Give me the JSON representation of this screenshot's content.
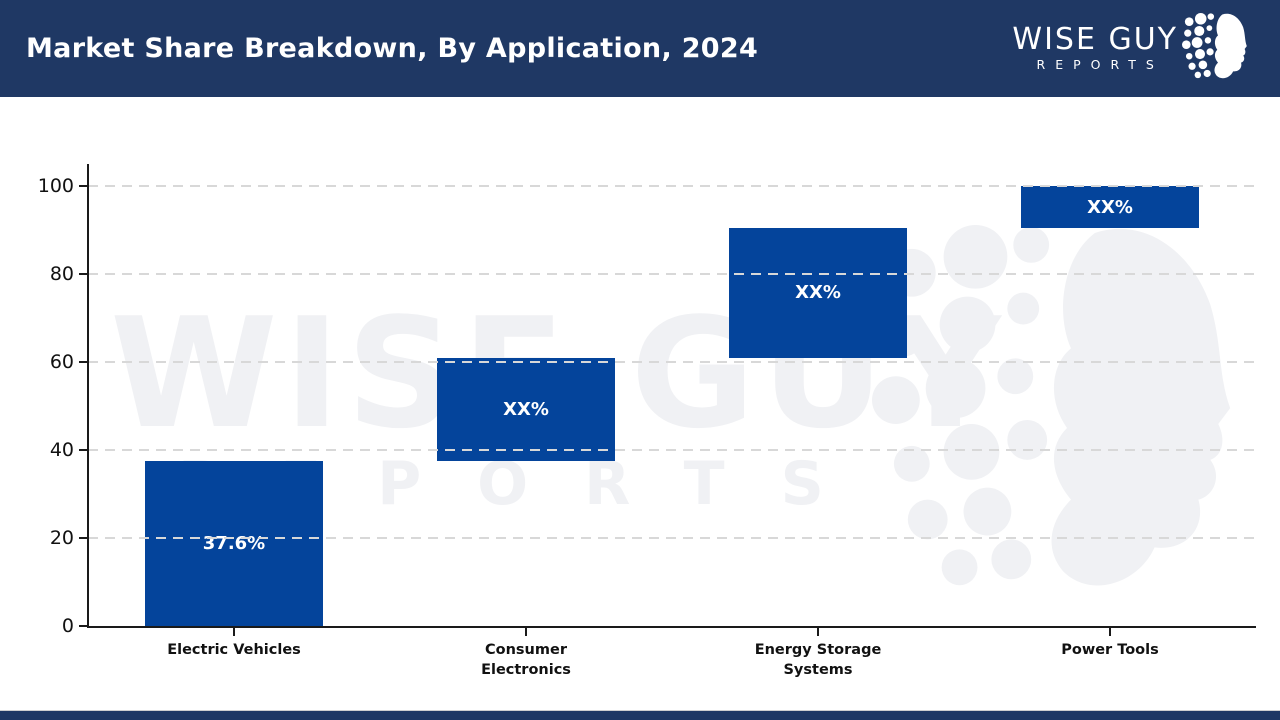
{
  "header": {
    "title": "Market Share Breakdown, By Application, 2024",
    "logo_line1": "WISE GUY",
    "logo_line2": "REPORTS",
    "background_color": "#1F3864"
  },
  "watermark": {
    "line1": "WISE GUY",
    "line2": "REPORTS",
    "color": "#f0f1f4"
  },
  "chart_data": {
    "type": "bar",
    "subtype": "waterfall",
    "title": "Market Share Breakdown, By Application, 2024",
    "categories": [
      "Electric Vehicles",
      "Consumer Electronics",
      "Energy Storage Systems",
      "Power Tools"
    ],
    "bars": [
      {
        "label": "Electric Vehicles",
        "label_lines": [
          "Electric Vehicles"
        ],
        "start": 0,
        "end": 37.6,
        "segment": 37.6,
        "display": "37.6%"
      },
      {
        "label": "Consumer Electronics",
        "label_lines": [
          "Consumer",
          "Electronics"
        ],
        "start": 37.6,
        "end": 61.0,
        "segment": 23.4,
        "display": "XX%"
      },
      {
        "label": "Energy Storage Systems",
        "label_lines": [
          "Energy Storage",
          "Systems"
        ],
        "start": 61.0,
        "end": 90.4,
        "segment": 29.4,
        "display": "XX%"
      },
      {
        "label": "Power Tools",
        "label_lines": [
          "Power Tools"
        ],
        "start": 90.4,
        "end": 100.0,
        "segment": 9.6,
        "display": "XX%"
      }
    ],
    "y_ticks": [
      0,
      20,
      40,
      60,
      80,
      100
    ],
    "ylim": [
      0,
      105
    ],
    "xlabel": "",
    "ylabel": "",
    "bar_color": "#04449B",
    "grid": "horizontal dashed, drawn over bars",
    "gridline_color": "#d8d8d8",
    "legend_position": "none"
  }
}
